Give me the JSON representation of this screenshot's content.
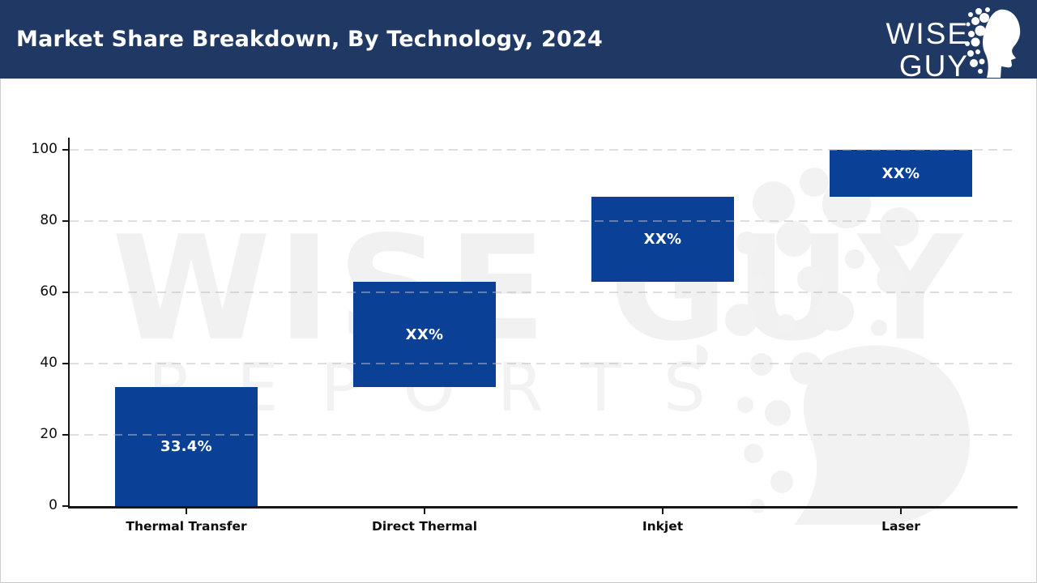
{
  "header": {
    "title": "Market Share Breakdown, By Technology, 2024",
    "logo": {
      "line1": "WISE GUY",
      "line2": "REPORTS"
    }
  },
  "watermark": {
    "line1": "WISE GUY",
    "line2": "REPORTS"
  },
  "colors": {
    "header_bg": "#203864",
    "bar": "#0a4196",
    "bar_label": "#ffffff",
    "axis": "#161616",
    "gridline": "#e0e0e0",
    "watermark": "#f1f1f1"
  },
  "chart_data": {
    "type": "bar",
    "subtype": "floating-waterfall",
    "title": "Market Share Breakdown, By Technology, 2024",
    "categories": [
      "Thermal Transfer",
      "Direct Thermal",
      "Inkjet",
      "Laser"
    ],
    "segments": [
      {
        "category": "Thermal Transfer",
        "start": 0,
        "end": 33.4,
        "label": "33.4%"
      },
      {
        "category": "Direct Thermal",
        "start": 33.4,
        "end": 62.9,
        "label": "XX%"
      },
      {
        "category": "Inkjet",
        "start": 62.9,
        "end": 86.8,
        "label": "XX%"
      },
      {
        "category": "Laser",
        "start": 86.8,
        "end": 100,
        "label": "XX%"
      }
    ],
    "yticks": [
      0,
      20,
      40,
      60,
      80,
      100
    ],
    "ylim": [
      0,
      103
    ],
    "xlabel": "",
    "ylabel": "",
    "grid": "dashed-horizontal",
    "legend": "none"
  }
}
